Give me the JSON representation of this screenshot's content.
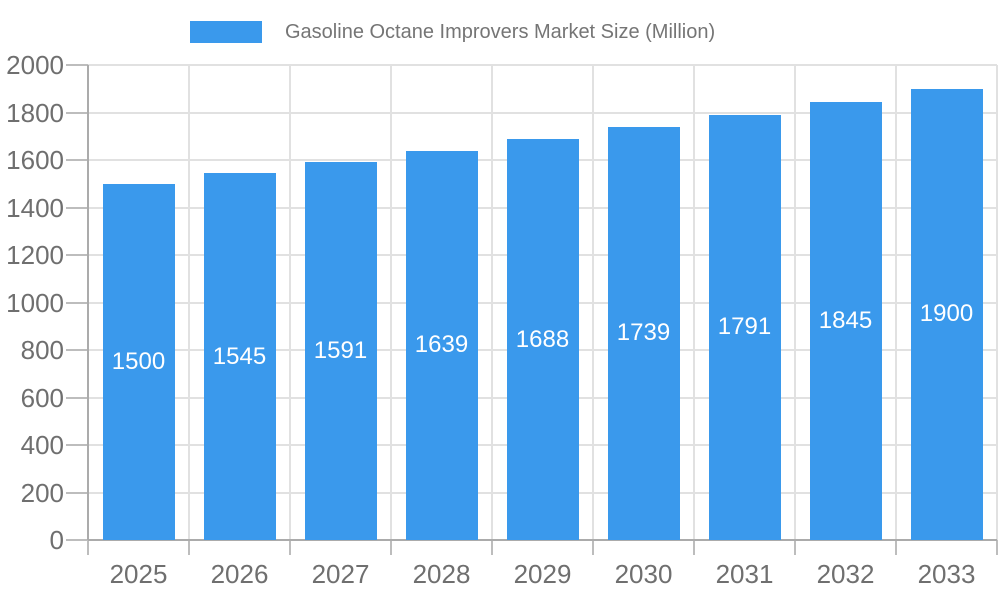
{
  "legend": {
    "label": "Gasoline Octane Improvers Market Size (Million)",
    "swatch_color": "#3A99EC"
  },
  "chart_data": {
    "type": "bar",
    "title": "Gasoline Octane Improvers Market Size (Million)",
    "categories": [
      "2025",
      "2026",
      "2027",
      "2028",
      "2029",
      "2030",
      "2031",
      "2032",
      "2033"
    ],
    "series": [
      {
        "name": "Gasoline Octane Improvers Market Size (Million)",
        "values": [
          1500,
          1545,
          1591,
          1639,
          1688,
          1739,
          1791,
          1845,
          1900
        ]
      }
    ],
    "value_labels": [
      "1500",
      "1545",
      "1591",
      "1639",
      "1688",
      "1739",
      "1791",
      "1845",
      "1900"
    ],
    "xlabel": "",
    "ylabel": "",
    "ylim": [
      0,
      2000
    ],
    "yticks": [
      0,
      200,
      400,
      600,
      800,
      1000,
      1200,
      1400,
      1600,
      1800,
      2000
    ],
    "grid": true,
    "legend_position": "top"
  },
  "colors": {
    "bar": "#3A99EC",
    "grid": "#E1E1E1",
    "axis": "#ABABAB",
    "tick": "#BDBDBD",
    "axis_text": "#6F6F6F",
    "legend_text": "#757575",
    "value_text": "#FFFFFF",
    "background": "#FFFFFF"
  }
}
